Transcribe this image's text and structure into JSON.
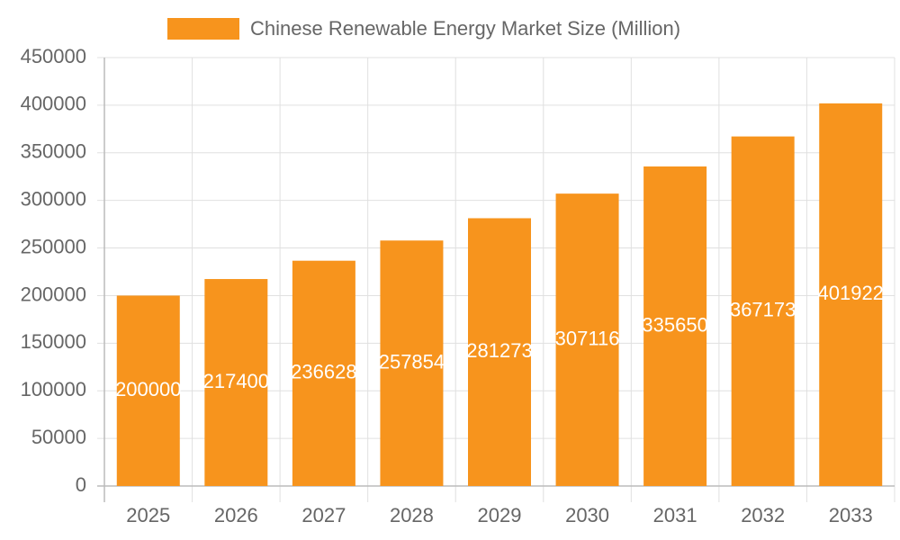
{
  "chart_data": {
    "type": "bar",
    "categories": [
      "2025",
      "2026",
      "2027",
      "2028",
      "2029",
      "2030",
      "2031",
      "2032",
      "2033"
    ],
    "series": [
      {
        "name": "Chinese Renewable Energy Market Size (Million)",
        "color": "#f7941d",
        "values": [
          200000,
          217400,
          236628,
          257854,
          281273,
          307116,
          335650,
          367173,
          401922
        ]
      }
    ],
    "ylim": [
      0,
      450000
    ],
    "yticks": [
      0,
      50000,
      100000,
      150000,
      200000,
      250000,
      300000,
      350000,
      400000,
      450000
    ],
    "grid": true,
    "legend": "top",
    "data_labels": true
  }
}
